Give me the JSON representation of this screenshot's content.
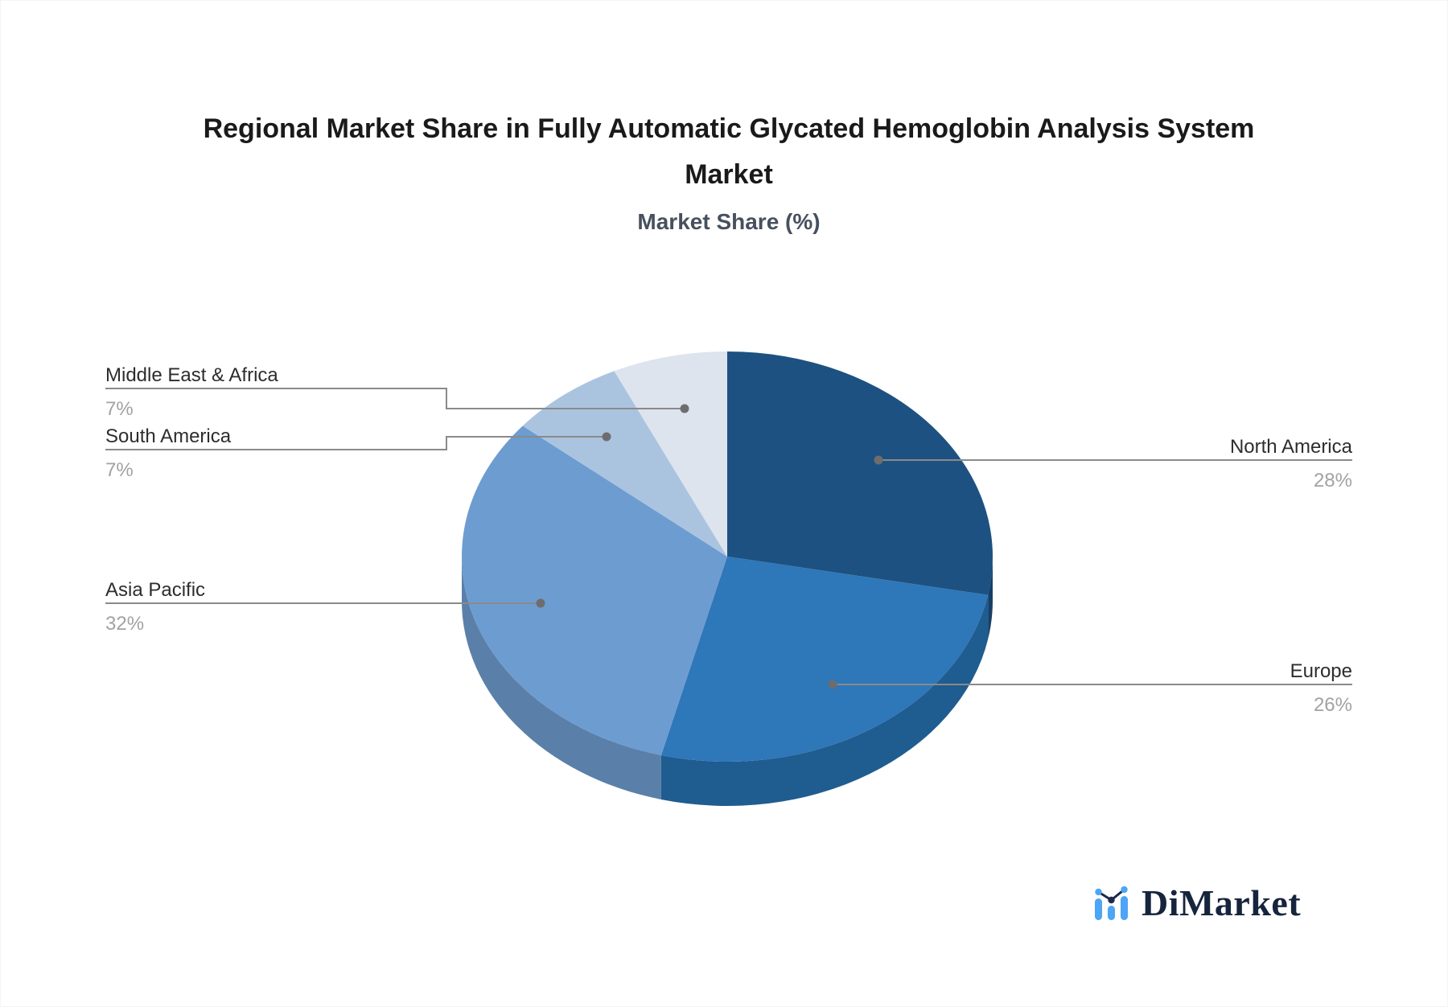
{
  "header": {
    "title_line1": "Regional Market Share in Fully Automatic Glycated Hemoglobin Analysis System",
    "title_line2": "Market",
    "subtitle": "Market Share (%)"
  },
  "chart_data": {
    "type": "pie",
    "title": "Regional Market Share in Fully Automatic Glycated Hemoglobin Analysis System Market",
    "subtitle": "Market Share (%)",
    "unit": "%",
    "effect": "3d",
    "start_angle_deg": 0,
    "direction": "clockwise",
    "labels": [
      "North America",
      "Europe",
      "Asia Pacific",
      "South America",
      "Middle East & Africa"
    ],
    "values": [
      28,
      26,
      32,
      7,
      7
    ],
    "percent_labels": [
      "28%",
      "26%",
      "32%",
      "7%",
      "7%"
    ],
    "colors": [
      "#1d5181",
      "#2e77b8",
      "#6d9cd1",
      "#aac4e0",
      "#dde4ee"
    ],
    "side_colors": [
      "#173f66",
      "#1f5c90",
      "#5a80a9",
      "#8fb0d2",
      "#c3cfdf"
    ],
    "legend": "callout-labels"
  },
  "branding": {
    "logo_text": "DiMarket",
    "logo_icon": "bar-line-chart-icon",
    "logo_text_color": "#16243d",
    "logo_accent_color": "#4da5f5"
  },
  "styles": {
    "line_color": "#8a8a8a",
    "dot_color": "#6d6d6d",
    "label_color": "#2d2d2d",
    "pct_color": "#a2a2a2",
    "title_color": "#1a1a1a",
    "subtitle_color": "#47505e"
  }
}
